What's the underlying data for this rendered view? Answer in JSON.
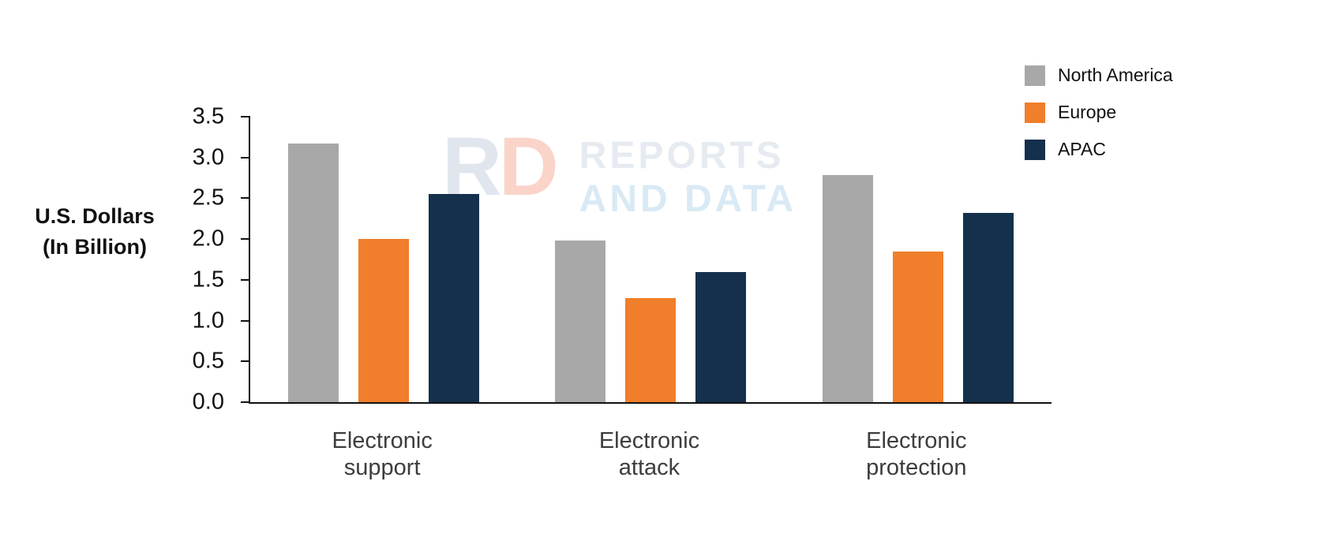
{
  "chart_data": {
    "type": "bar",
    "title": "",
    "categories": [
      "Electronic support",
      "Electronic attack",
      "Electronic protection"
    ],
    "series": [
      {
        "name": "North America",
        "color": "#a8a8a8",
        "values": [
          3.17,
          1.98,
          2.78
        ]
      },
      {
        "name": "Europe",
        "color": "#f07e2a",
        "values": [
          2.0,
          1.28,
          1.85
        ]
      },
      {
        "name": "APAC",
        "color": "#14304d",
        "values": [
          2.55,
          1.6,
          2.32
        ]
      }
    ],
    "ylabel": "U.S. Dollars (In Billion)",
    "ylabel_line1": "U.S. Dollars",
    "ylabel_line2": "(In Billion)",
    "ylim": [
      0,
      3.5
    ],
    "ytick_step": 0.5,
    "yticks": [
      "3.5",
      "3.0",
      "2.5",
      "2.0",
      "1.5",
      "1.0",
      "0.5",
      "0.0"
    ],
    "xlabel": "",
    "grid": false,
    "legend_position": "top-right"
  },
  "watermark": {
    "logo_letter_r": "R",
    "logo_letter_d": "D",
    "line1": "REPORTS",
    "line2": "AND DATA"
  }
}
